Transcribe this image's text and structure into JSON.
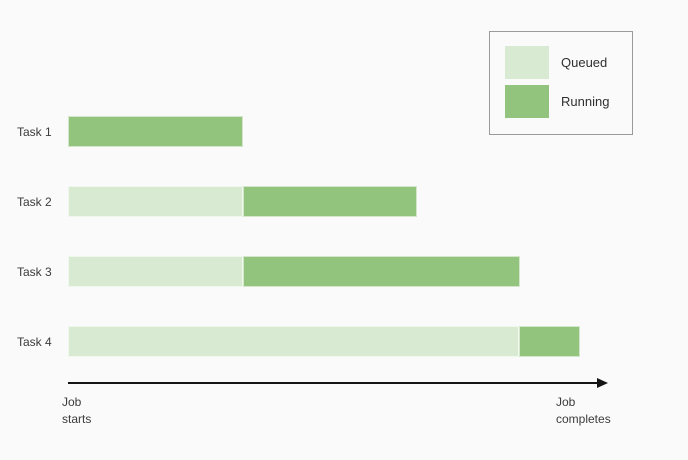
{
  "page": {
    "background": "#fafafa",
    "text_color": "#3c3c3c",
    "axis_color": "#141414"
  },
  "chart_data": {
    "type": "gantt",
    "title": "",
    "legend_position": "top-right",
    "legend": [
      {
        "label": "Queued",
        "color": "#d9ead3"
      },
      {
        "label": "Running",
        "color": "#93c47d"
      }
    ],
    "tasks": [
      {
        "label": "Task 1",
        "queued": [
          0,
          0
        ],
        "running": [
          0,
          32.5
        ]
      },
      {
        "label": "Task 2",
        "queued": [
          0,
          32.5
        ],
        "running": [
          32.5,
          64.7
        ]
      },
      {
        "label": "Task 3",
        "queued": [
          0,
          32.5
        ],
        "running": [
          32.5,
          83.9
        ]
      },
      {
        "label": "Task 4",
        "queued": [
          0,
          83.7
        ],
        "running": [
          83.7,
          95.0
        ]
      }
    ],
    "axis": {
      "range_percent": [
        0,
        100
      ],
      "start_label": "Job starts",
      "end_label": "Job completes",
      "start_label_lines": [
        "Job",
        "starts"
      ],
      "end_label_lines": [
        "Job",
        "completes"
      ]
    }
  }
}
